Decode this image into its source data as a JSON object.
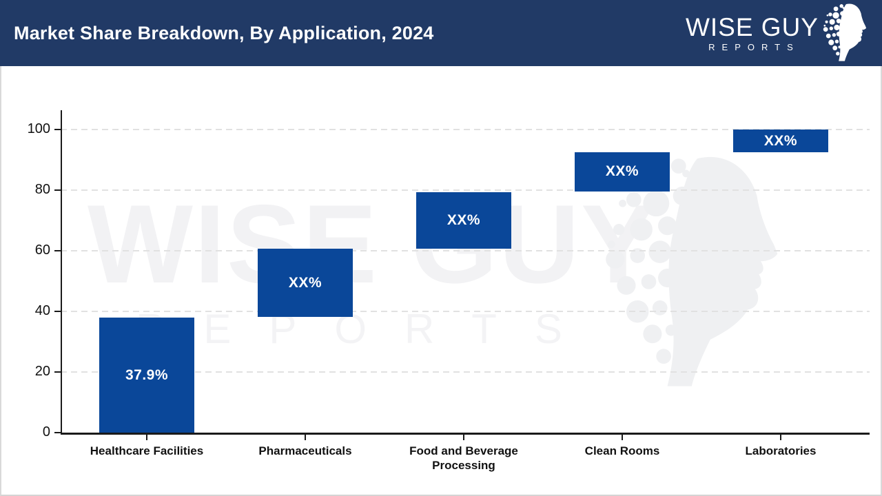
{
  "header": {
    "title": "Market Share Breakdown, By Application, 2024",
    "bg_color": "#213a66",
    "logo": {
      "line1": "WISE GUY",
      "line2": "REPORTS"
    }
  },
  "watermark": {
    "line1": "WISE GUY",
    "line2": "REPORTS"
  },
  "chart_data": {
    "type": "bar",
    "subtype": "waterfall",
    "title": "Market Share Breakdown, By Application, 2024",
    "categories": [
      "Healthcare Facilities",
      "Pharmaceuticals",
      "Food and Beverage Processing",
      "Clean Rooms",
      "Laboratories"
    ],
    "segments": [
      {
        "category": "Healthcare Facilities",
        "start": 0,
        "end": 37.9,
        "label": "37.9%"
      },
      {
        "category": "Pharmaceuticals",
        "start": 38.2,
        "end": 60.6,
        "label": "XX%"
      },
      {
        "category": "Food and Beverage Processing",
        "start": 60.6,
        "end": 79.4,
        "label": "XX%"
      },
      {
        "category": "Clean Rooms",
        "start": 79.6,
        "end": 92.5,
        "label": "XX%"
      },
      {
        "category": "Laboratories",
        "start": 92.4,
        "end": 100,
        "label": "XX%"
      }
    ],
    "y_ticks": [
      0,
      20,
      40,
      60,
      80,
      100
    ],
    "ylim": [
      0,
      105
    ],
    "xlabel": "",
    "ylabel": "",
    "bar_color": "#0a4799",
    "grid": "horizontal-dashed",
    "legend": "none"
  }
}
